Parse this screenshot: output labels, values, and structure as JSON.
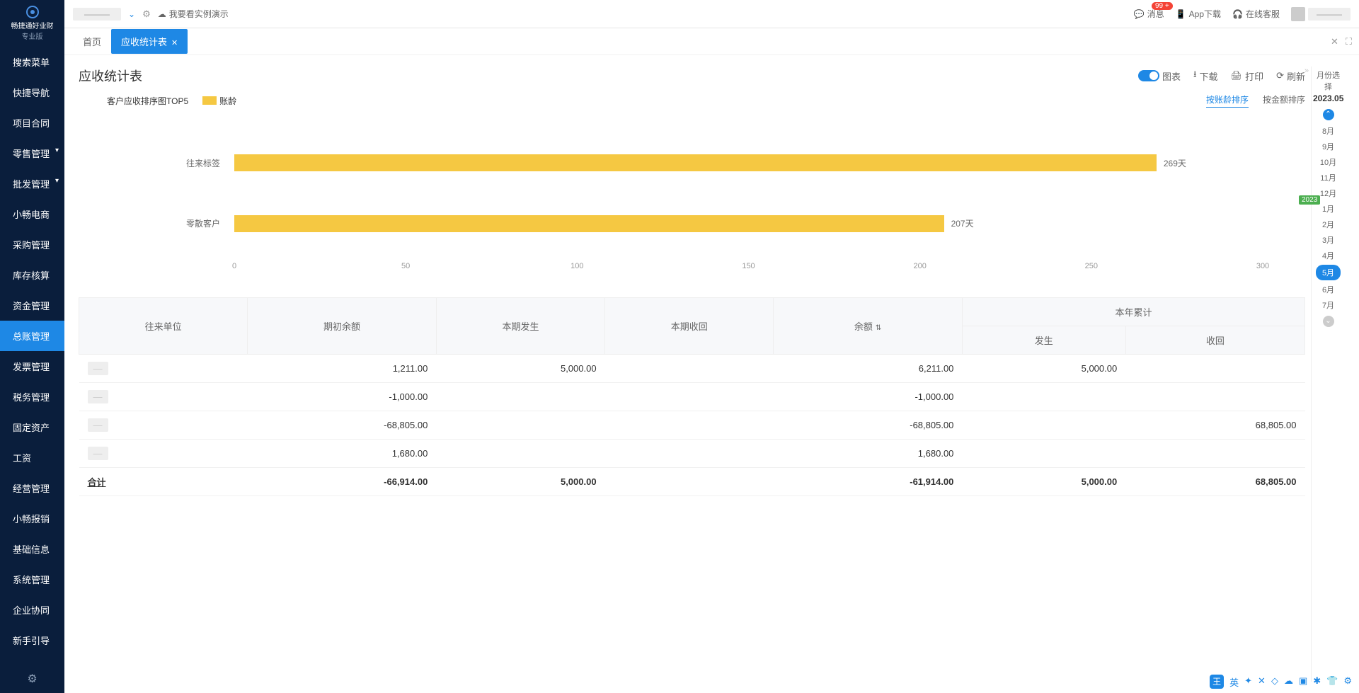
{
  "app": {
    "logo_text": "畅捷通好业财",
    "logo_sub": "专业版"
  },
  "sidebar": {
    "items": [
      {
        "label": "搜索菜单",
        "has_caret": false
      },
      {
        "label": "快捷导航",
        "has_caret": false
      },
      {
        "label": "项目合同",
        "has_caret": false
      },
      {
        "label": "零售管理",
        "has_caret": true
      },
      {
        "label": "批发管理",
        "has_caret": true
      },
      {
        "label": "小畅电商",
        "has_caret": false
      },
      {
        "label": "采购管理",
        "has_caret": false
      },
      {
        "label": "库存核算",
        "has_caret": false
      },
      {
        "label": "资金管理",
        "has_caret": false
      },
      {
        "label": "总账管理",
        "has_caret": false,
        "active": true
      },
      {
        "label": "发票管理",
        "has_caret": false
      },
      {
        "label": "税务管理",
        "has_caret": false
      },
      {
        "label": "固定资产",
        "has_caret": false
      },
      {
        "label": "工资",
        "has_caret": false
      },
      {
        "label": "经营管理",
        "has_caret": false
      },
      {
        "label": "小畅报销",
        "has_caret": false
      },
      {
        "label": "基础信息",
        "has_caret": false
      },
      {
        "label": "系统管理",
        "has_caret": false
      },
      {
        "label": "企业协同",
        "has_caret": false
      },
      {
        "label": "新手引导",
        "has_caret": false
      }
    ]
  },
  "header": {
    "org_placeholder": "———",
    "demo_label": "我要看实例演示",
    "messages_label": "消息",
    "messages_badge": "99 +",
    "app_download_label": "App下载",
    "online_service_label": "在线客服",
    "user_placeholder": "———"
  },
  "tabs": {
    "items": [
      {
        "label": "首页",
        "active": false,
        "closable": false
      },
      {
        "label": "应收统计表",
        "active": true,
        "closable": true
      }
    ]
  },
  "page": {
    "title": "应收统计表",
    "toggle_label": "图表",
    "download_label": "下载",
    "print_label": "打印",
    "refresh_label": "刷新"
  },
  "chart": {
    "title": "客户应收排序图TOP5",
    "legend_label": "账龄",
    "sort_options": [
      "按账龄排序",
      "按金额排序"
    ],
    "sort_active_index": 0,
    "type": "horizontal_bar",
    "x_min": 0,
    "x_max": 300,
    "x_tick_step": 50,
    "x_ticks": [
      0,
      50,
      100,
      150,
      200,
      250,
      300
    ],
    "bar_color": "#f5c842",
    "background_color": "#ffffff",
    "bars": [
      {
        "label": "往来标签",
        "value": 269,
        "value_label": "269天",
        "top_pct": 20
      },
      {
        "label": "零散客户",
        "value": 207,
        "value_label": "207天",
        "top_pct": 65
      }
    ]
  },
  "table": {
    "headers": {
      "unit": "往来单位",
      "opening": "期初余额",
      "occurred": "本期发生",
      "received": "本期收回",
      "balance": "余额",
      "ytd": "本年累计",
      "ytd_occurred": "发生",
      "ytd_received": "收回"
    },
    "rows": [
      {
        "unit": "—",
        "opening": "1,211.00",
        "occurred": "5,000.00",
        "received": "",
        "balance": "6,211.00",
        "ytd_occurred": "5,000.00",
        "ytd_received": ""
      },
      {
        "unit": "—",
        "opening": "-1,000.00",
        "occurred": "",
        "received": "",
        "balance": "-1,000.00",
        "ytd_occurred": "",
        "ytd_received": ""
      },
      {
        "unit": "—",
        "opening": "-68,805.00",
        "occurred": "",
        "received": "",
        "balance": "-68,805.00",
        "ytd_occurred": "",
        "ytd_received": "68,805.00"
      },
      {
        "unit": "—",
        "opening": "1,680.00",
        "occurred": "",
        "received": "",
        "balance": "1,680.00",
        "ytd_occurred": "",
        "ytd_received": ""
      }
    ],
    "total": {
      "unit": "合计",
      "opening": "-66,914.00",
      "occurred": "5,000.00",
      "received": "",
      "balance": "-61,914.00",
      "ytd_occurred": "5,000.00",
      "ytd_received": "68,805.00"
    }
  },
  "month_panel": {
    "header": "月份选择",
    "current": "2023.05",
    "year_badge": "2023",
    "months": [
      "8月",
      "9月",
      "10月",
      "11月",
      "12月",
      "1月",
      "2月",
      "3月",
      "4月",
      "5月",
      "6月",
      "7月"
    ],
    "selected_index": 9,
    "year_badge_after_index": 4
  },
  "tray": {
    "main": "王",
    "items": [
      "英",
      "✦",
      "✕",
      "◇",
      "☁",
      "▣",
      "✱",
      "👕",
      "⚙"
    ]
  }
}
